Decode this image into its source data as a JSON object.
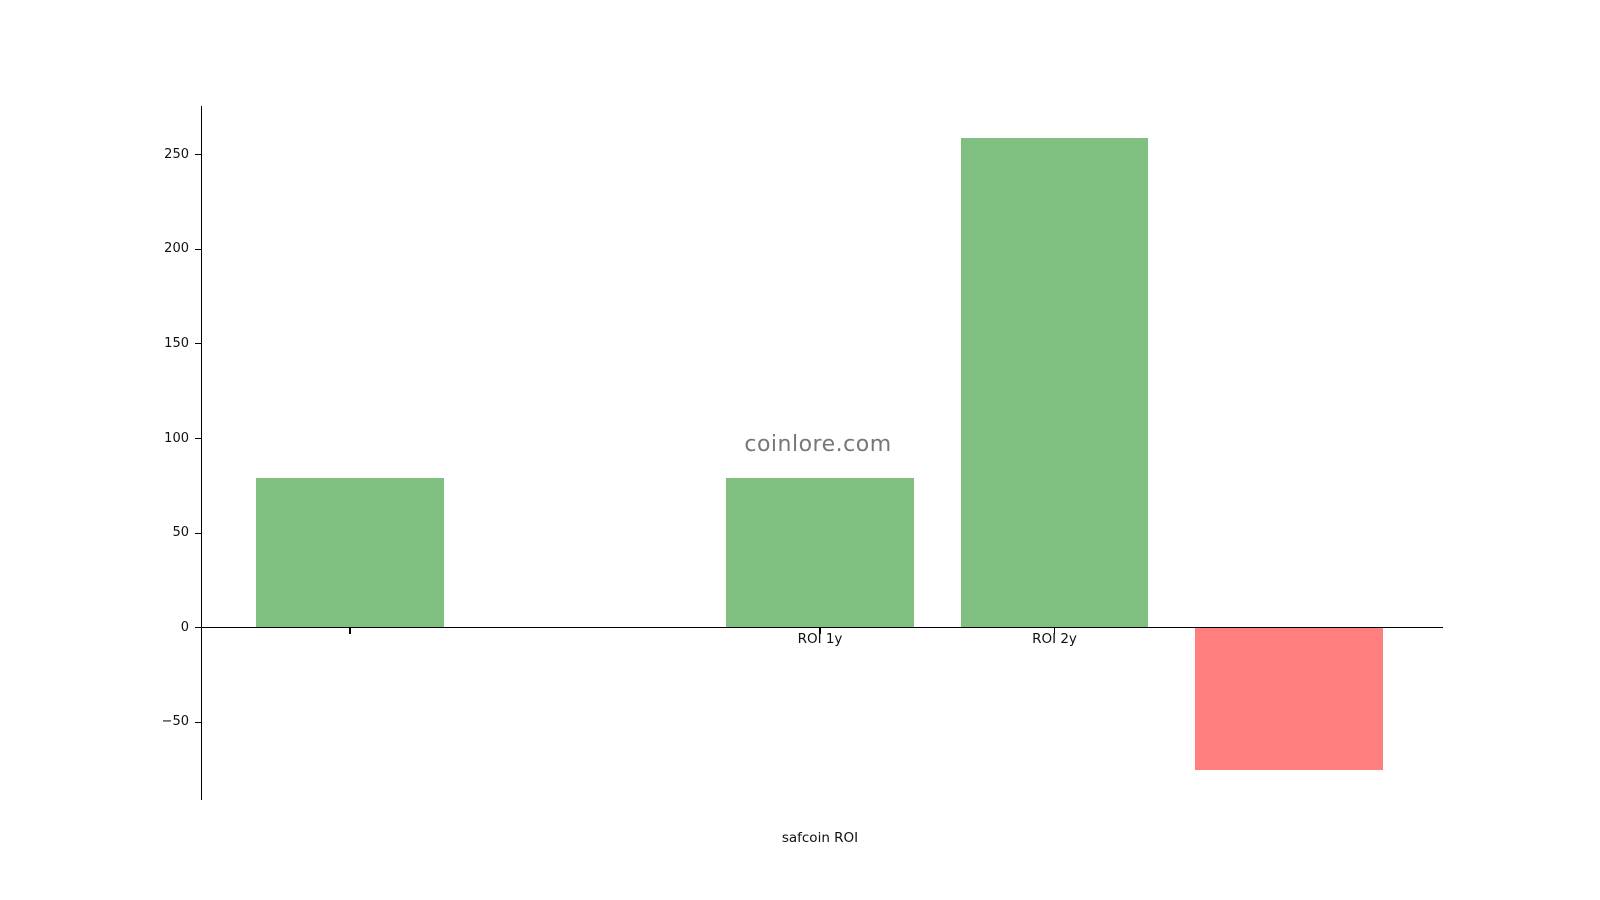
{
  "chart_data": {
    "type": "bar",
    "title": "safcoin ROI",
    "watermark": "coinlore.com",
    "categories": [
      "",
      "",
      "ROI 1y",
      "ROI 2y",
      ""
    ],
    "values": [
      79,
      null,
      79,
      259,
      -75
    ],
    "series": [
      {
        "name": "safcoin ROI %",
        "values": [
          79,
          null,
          79,
          259,
          -75
        ]
      }
    ],
    "x_ticks": [
      {
        "slot": 0,
        "label": ""
      },
      {
        "slot": 2,
        "label": "ROI 1y"
      },
      {
        "slot": 3,
        "label": "ROI 2y"
      }
    ],
    "y_ticks": [
      250,
      200,
      150,
      100,
      50,
      0,
      -50
    ],
    "ylim": [
      -91,
      276
    ],
    "xlabel": "",
    "ylabel": "",
    "grid": false,
    "legend_position": "none",
    "colors": {
      "positive_bar": "#7fbf7f",
      "negative_bar": "#ff7f7f",
      "axis": "#000000",
      "tick_text": "#111111",
      "watermark_text": "#777777"
    }
  }
}
